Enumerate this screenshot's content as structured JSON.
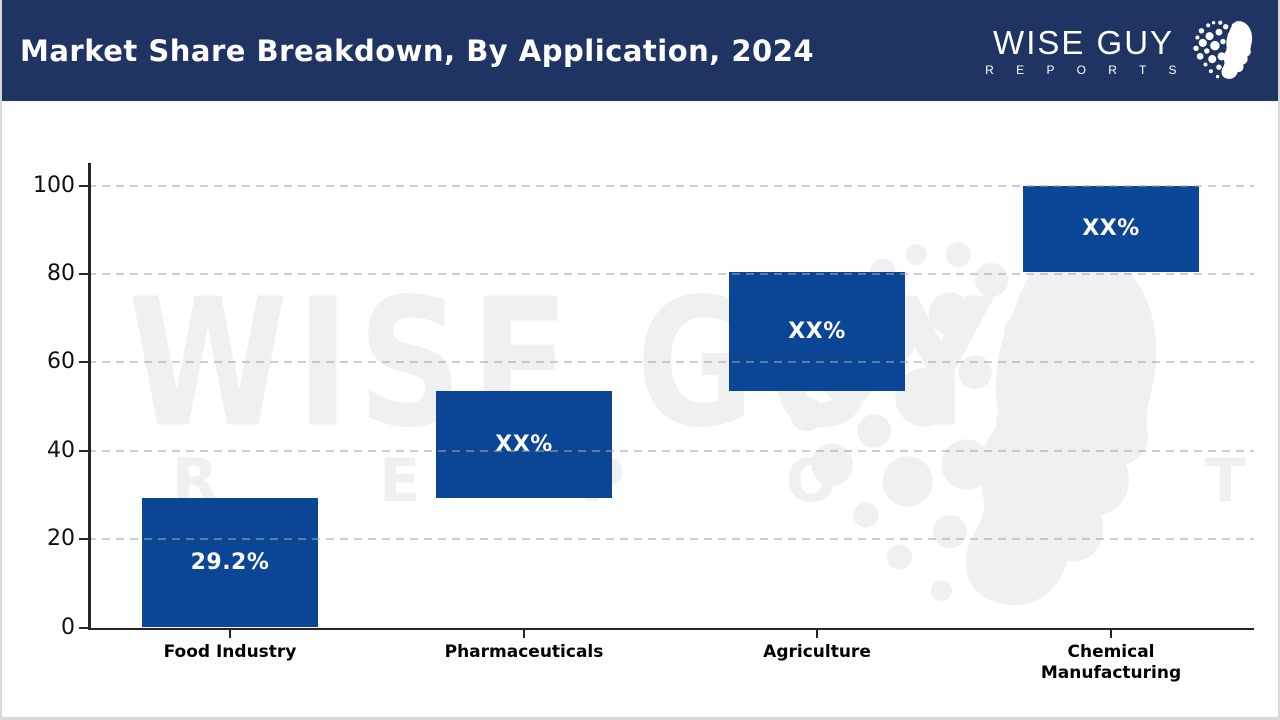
{
  "theme": {
    "header_bg": "#1f3462",
    "bar_color": "#0a4596",
    "grid_color": "#a5a5a5",
    "axis_color": "#262626",
    "bar_label_color": "#ffffff",
    "watermark_color": "#f0f0f2"
  },
  "header": {
    "title": "Market Share Breakdown, By Application, 2024",
    "logo": {
      "name": "Wise Guy Reports",
      "line1": "WISE GUY",
      "line2": "R E P O R T S",
      "face_icon": "dotted-face-profile"
    }
  },
  "watermark": {
    "line1": "WISE GUY",
    "line2": "R E P O R T S"
  },
  "chart_data": {
    "type": "bar",
    "subtype": "waterfall",
    "title": "Market Share Breakdown, By Application, 2024",
    "categories": [
      "Food Industry",
      "Pharmaceuticals",
      "Agriculture",
      "Chemical Manufacturing"
    ],
    "series": [
      {
        "name": "Market share (%)",
        "segments": [
          {
            "category": "Food Industry",
            "start": 0,
            "end": 29.2,
            "label": "29.2%"
          },
          {
            "category": "Pharmaceuticals",
            "start": 29.2,
            "end": 53.5,
            "label": "XX%"
          },
          {
            "category": "Agriculture",
            "start": 53.5,
            "end": 80.5,
            "label": "XX%"
          },
          {
            "category": "Chemical Manufacturing",
            "start": 80.5,
            "end": 100,
            "label": "XX%"
          }
        ]
      }
    ],
    "value_labels_masked_as": "XX%",
    "xlabel": "",
    "ylabel": "",
    "ylim": [
      0,
      105
    ],
    "yticks": [
      0,
      20,
      40,
      60,
      80,
      100
    ],
    "grid": "dashed-horizontal-over-bars",
    "legend": "none"
  }
}
